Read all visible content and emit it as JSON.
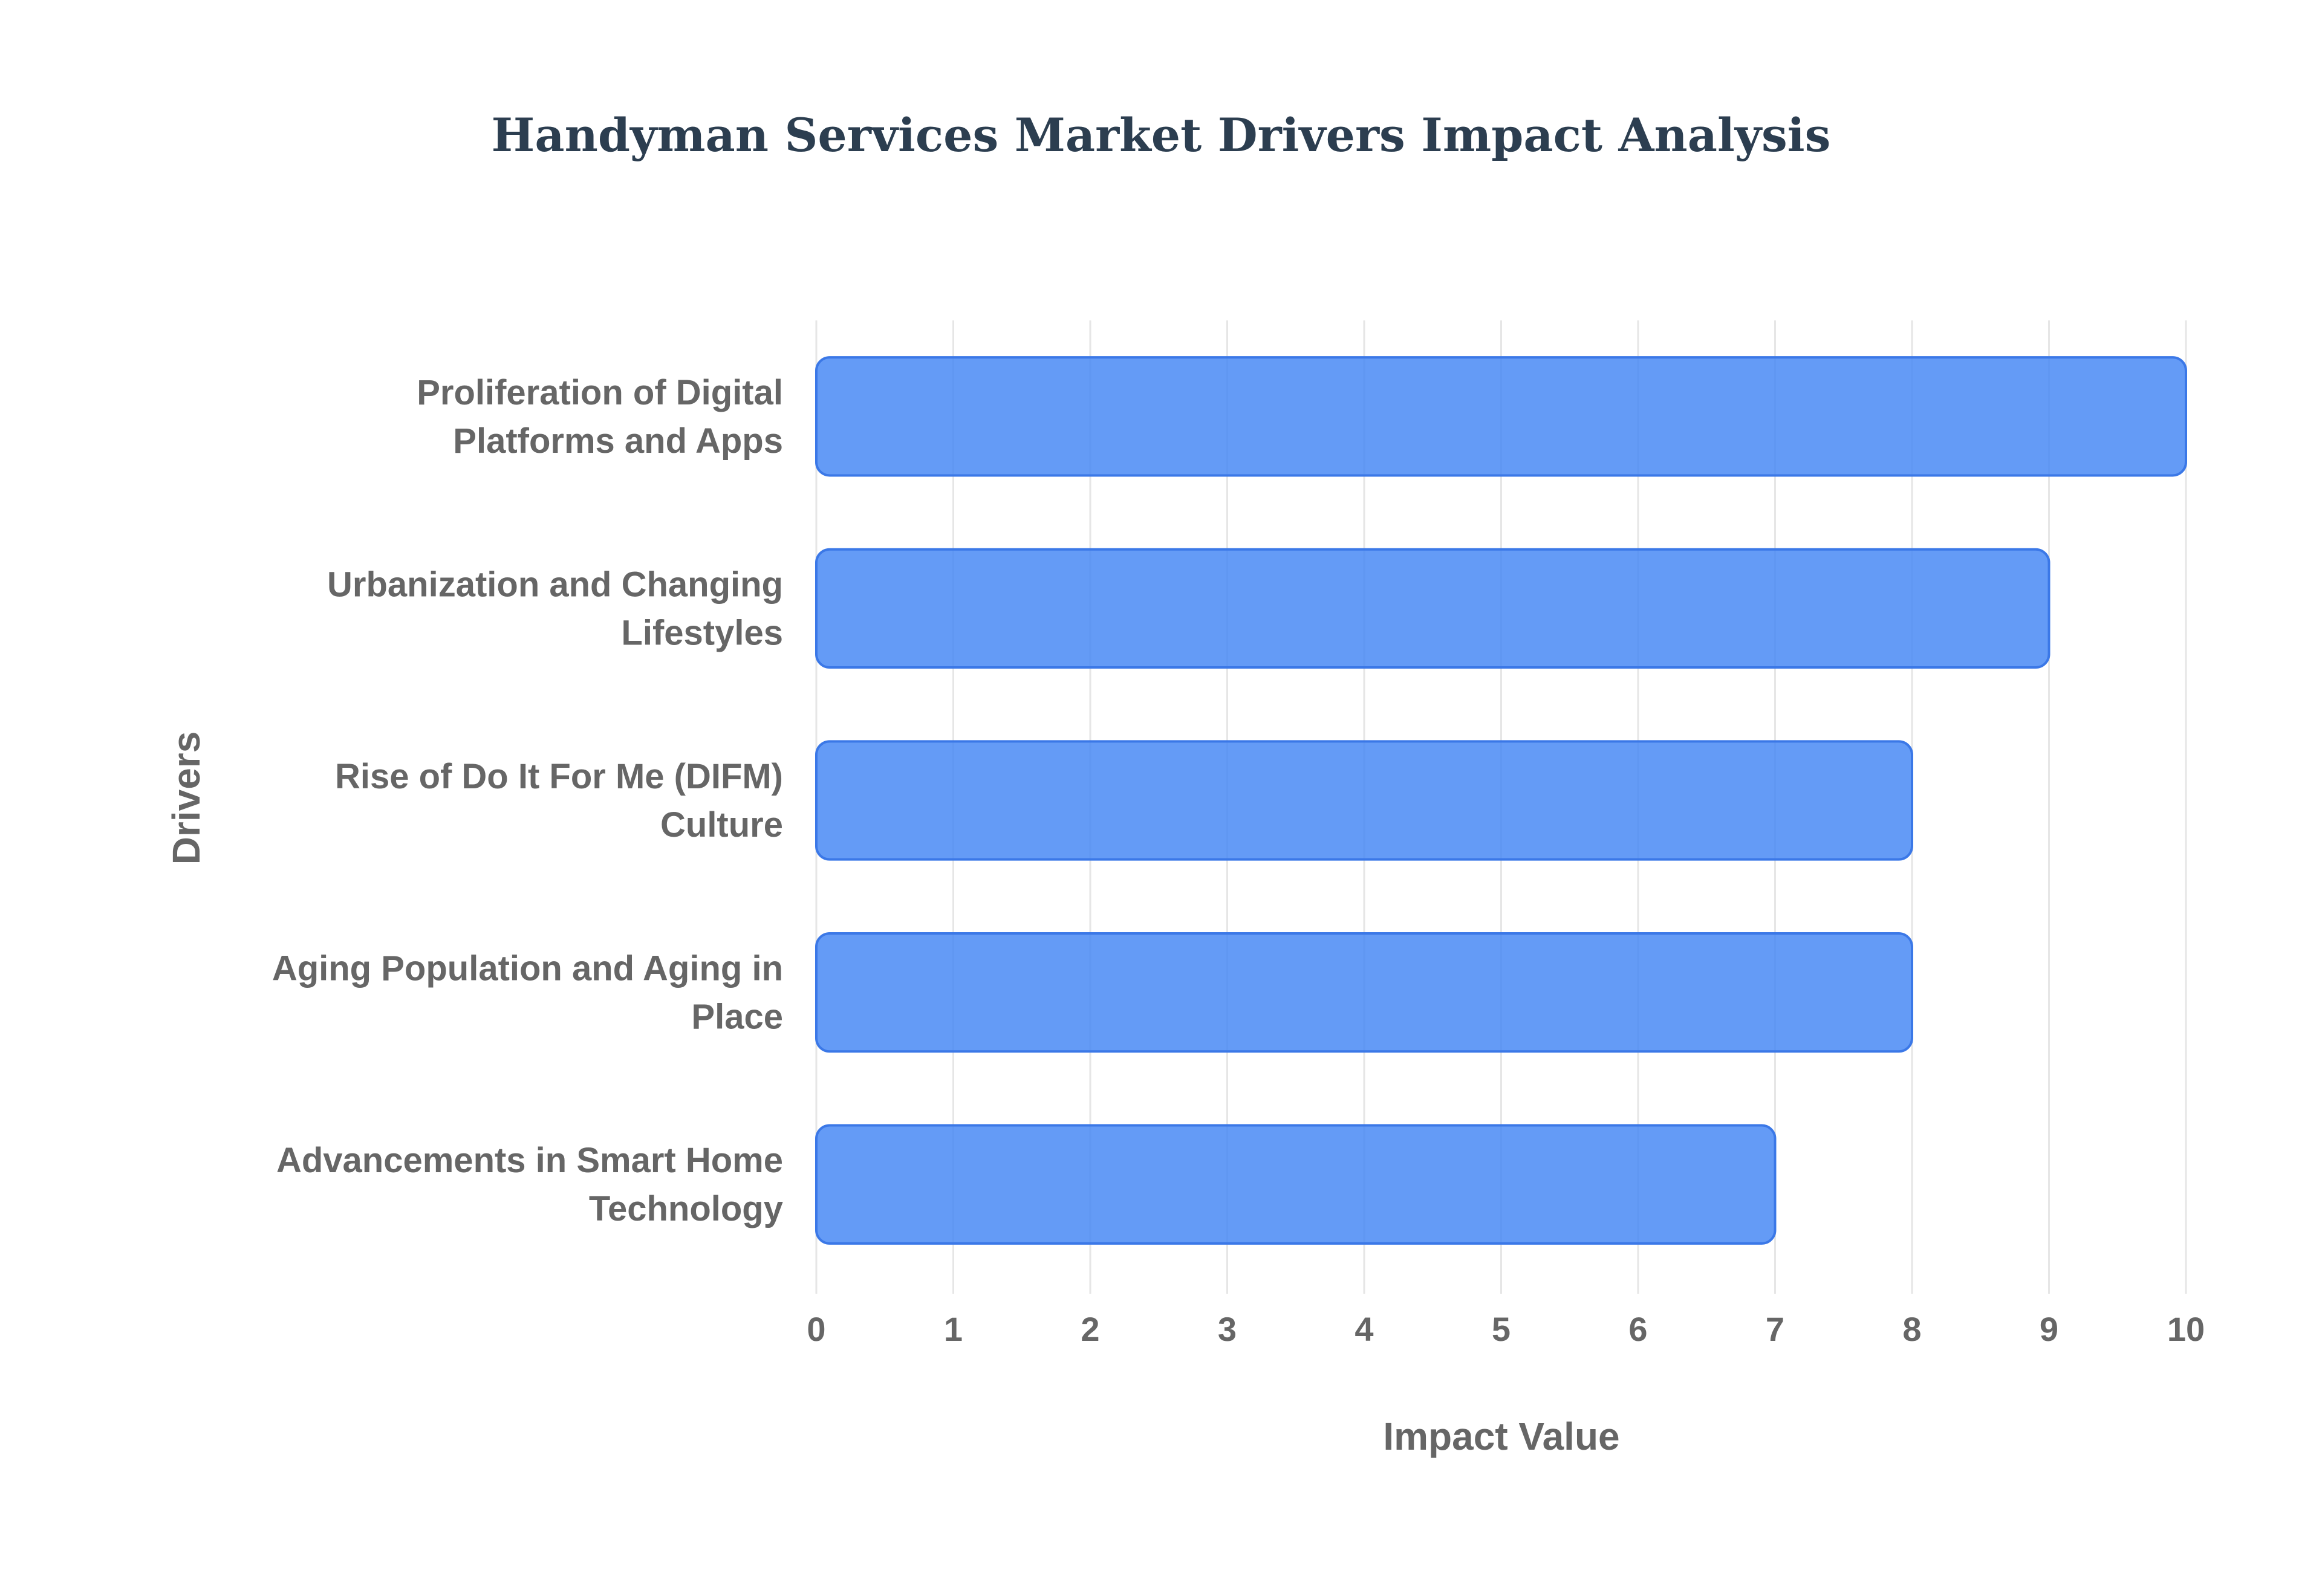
{
  "chart_data": {
    "type": "bar",
    "orientation": "horizontal",
    "title": "Handyman Services Market Drivers Impact Analysis",
    "xlabel": "Impact Value",
    "ylabel": "Drivers",
    "categories": [
      [
        "Proliferation of Digital",
        "Platforms and Apps"
      ],
      [
        "Urbanization and Changing",
        "Lifestyles"
      ],
      [
        "Rise of Do It For Me (DIFM)",
        "Culture"
      ],
      [
        "Aging Population and Aging in",
        "Place"
      ],
      [
        "Advancements in Smart Home",
        "Technology"
      ]
    ],
    "values": [
      10,
      9,
      8,
      8,
      7
    ],
    "xlim": [
      0,
      10
    ],
    "xticks": [
      "0",
      "1",
      "2",
      "3",
      "4",
      "5",
      "6",
      "7",
      "8",
      "9",
      "10"
    ],
    "grid": true,
    "legend": "none",
    "colors": {
      "bar_fill": "#4285f4",
      "bar_fill_opacity": 0.82,
      "bar_stroke": "#3b78e7",
      "title": "#2c3e50",
      "text": "#666666",
      "grid": "#e6e6e6"
    }
  }
}
